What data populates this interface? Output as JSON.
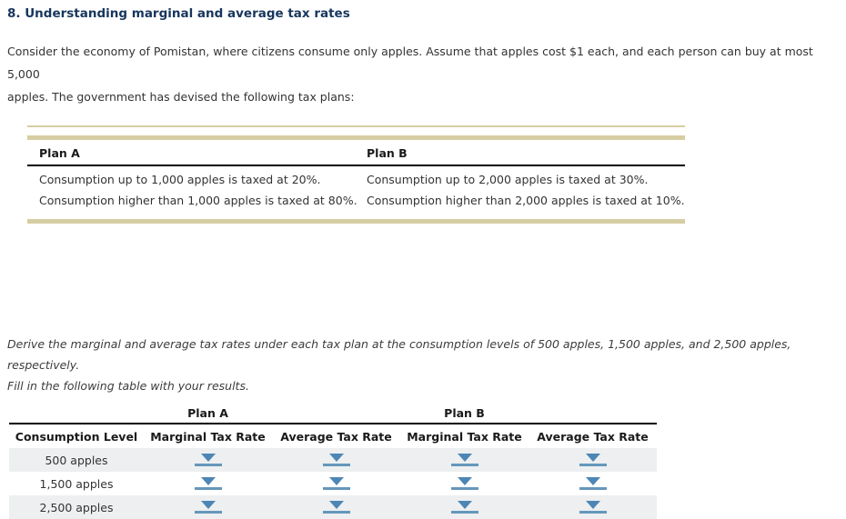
{
  "title": "8. Understanding marginal and average tax rates",
  "intro": {
    "line1": "Consider the economy of Pomistan, where citizens consume only apples. Assume that apples cost $1 each, and each person can buy at most 5,000",
    "line2": "apples. The government has devised the following tax plans:"
  },
  "plans_table": {
    "headers": [
      "Plan A",
      "Plan B"
    ],
    "rows": [
      [
        "Consumption up to 1,000 apples is taxed at 20%.",
        "Consumption up to 2,000 apples is taxed at 30%."
      ],
      [
        "Consumption higher than 1,000 apples is taxed at 80%.",
        "Consumption higher than 2,000 apples is taxed at 10%."
      ]
    ]
  },
  "instructions": {
    "line1": "Derive the marginal and average tax rates under each tax plan at the consumption levels of 500 apples, 1,500 apples, and 2,500 apples, respectively.",
    "line2": "Fill in the following table with your results."
  },
  "results_table": {
    "group_headers": [
      "Plan A",
      "Plan B"
    ],
    "column_headers": [
      "Consumption Level",
      "Marginal Tax Rate",
      "Average Tax Rate",
      "Marginal Tax Rate",
      "Average Tax Rate"
    ],
    "row_labels": [
      "500 apples",
      "1,500 apples",
      "2,500 apples"
    ],
    "dropdown_selected_value": ""
  },
  "colors": {
    "title": "#17365d",
    "body_text": "#333333",
    "table_rule_tan": "#d6cda2",
    "table_rule_black": "#000000",
    "row_shade": "#edeff0",
    "dropdown_blue": "#4d86b5",
    "dropdown_bar_blue": "#6597bb"
  }
}
